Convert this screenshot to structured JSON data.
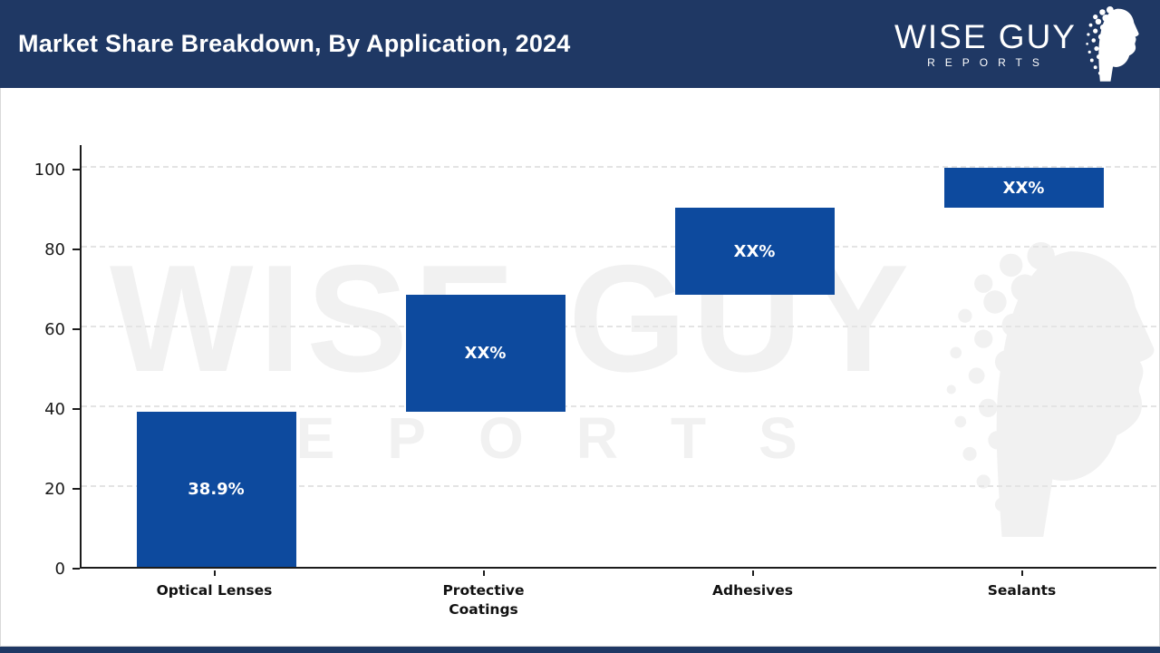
{
  "header": {
    "title": "Market Share Breakdown, By Application, 2024",
    "brand": {
      "line1": "WISE GUY",
      "line2": "REPORTS"
    },
    "bg_color": "#1f3864"
  },
  "watermark": {
    "line1": "WISE GUY",
    "line2": "REPORTS"
  },
  "chart_data": {
    "type": "bar",
    "subtype": "floating-waterfall",
    "title": "Market Share Breakdown, By Application, 2024",
    "categories": [
      "Optical Lenses",
      "Protective Coatings",
      "Adhesives",
      "Sealants"
    ],
    "series": [
      {
        "name": "Market Share",
        "segments": [
          {
            "category": "Optical Lenses",
            "start": 0,
            "end": 38.9,
            "label": "38.9%"
          },
          {
            "category": "Protective Coatings",
            "start": 38.9,
            "end": 68.1,
            "label": "XX%"
          },
          {
            "category": "Adhesives",
            "start": 68.1,
            "end": 90.0,
            "label": "XX%"
          },
          {
            "category": "Sealants",
            "start": 90.0,
            "end": 100.0,
            "label": "XX%"
          }
        ]
      }
    ],
    "xlabel": "",
    "ylabel": "",
    "ylim": [
      0,
      100
    ],
    "yticks": [
      0,
      20,
      40,
      60,
      80,
      100
    ],
    "grid": "horizontal-dashed",
    "legend": "none",
    "bar_color": "#0d4a9e",
    "bar_label_color": "#ffffff",
    "axis_color": "#1c1c1c",
    "gridline_color": "#e4e4e4"
  }
}
